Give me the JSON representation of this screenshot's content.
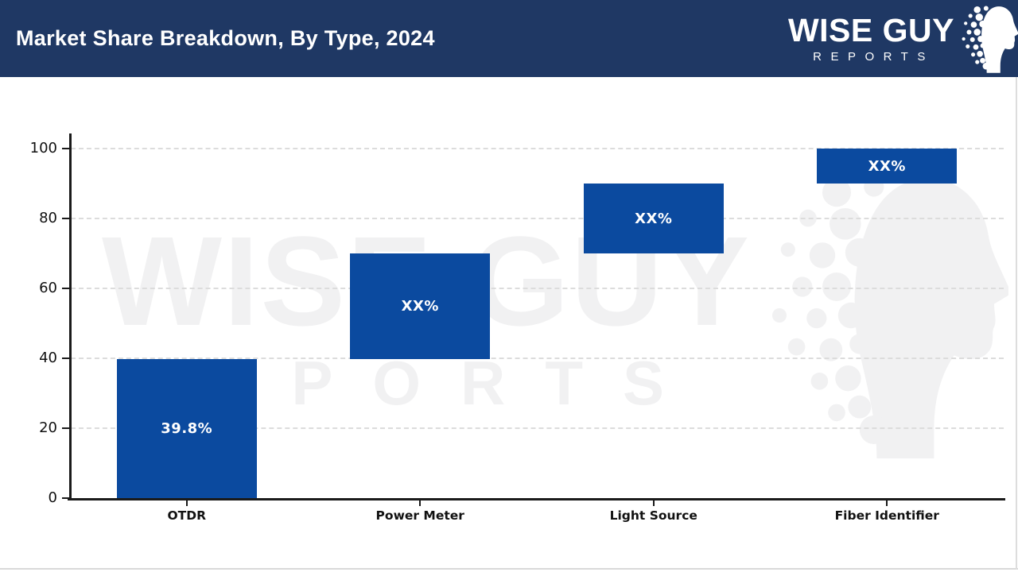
{
  "header": {
    "title": "Market Share Breakdown, By Type, 2024",
    "background_color": "#1F3864",
    "logo": {
      "line1": "WISE GUY",
      "line2": "REPORTS"
    }
  },
  "watermark": {
    "line1": "WISE GUY",
    "line2": "REPORTS"
  },
  "chart_data": {
    "type": "bar",
    "subtype": "waterfall",
    "title": "Market Share Breakdown, By Type, 2024",
    "categories": [
      "OTDR",
      "Power Meter",
      "Light Source",
      "Fiber Identifier"
    ],
    "segments": [
      {
        "category": "OTDR",
        "start": 0,
        "end": 39.8,
        "label": "39.8%"
      },
      {
        "category": "Power Meter",
        "start": 39.8,
        "end": 70,
        "label": "XX%"
      },
      {
        "category": "Light Source",
        "start": 70,
        "end": 90,
        "label": "XX%"
      },
      {
        "category": "Fiber Identifier",
        "start": 90,
        "end": 100,
        "label": "XX%"
      }
    ],
    "values_masked_except_first": true,
    "y_ticks": [
      0,
      20,
      40,
      60,
      80,
      100
    ],
    "ylim": [
      0,
      100
    ],
    "xlabel": "",
    "ylabel": "",
    "bar_color": "#0B4A9F",
    "grid": "horizontal-dashed",
    "legend": "none"
  }
}
